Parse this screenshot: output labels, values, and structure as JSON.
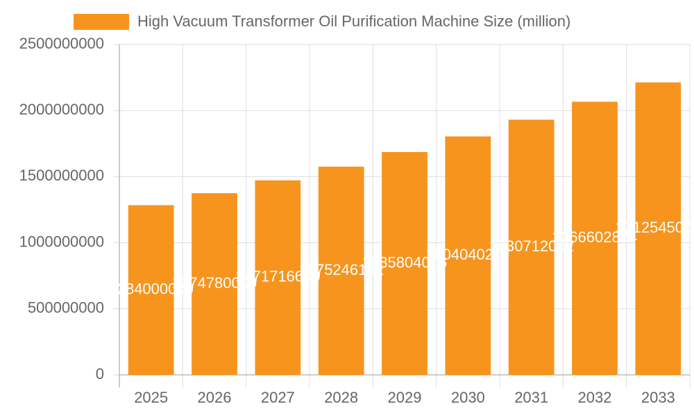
{
  "chart_data": {
    "type": "bar",
    "categories": [
      "2025",
      "2026",
      "2027",
      "2028",
      "2029",
      "2030",
      "2031",
      "2032",
      "2033"
    ],
    "series": [
      {
        "name": "High Vacuum Transformer Oil Purification Machine Size (million)",
        "color": "#f7941e",
        "values": [
          1284000000,
          1374780000,
          1471716600,
          1575246162,
          1685804016,
          1804040217,
          1930712002,
          2066602824,
          2212545000
        ]
      }
    ],
    "ylim": [
      0,
      2500000000
    ],
    "yticks": [
      0,
      500000000,
      1000000000,
      1500000000,
      2000000000,
      2500000000
    ],
    "grid": true,
    "legend": "top"
  }
}
